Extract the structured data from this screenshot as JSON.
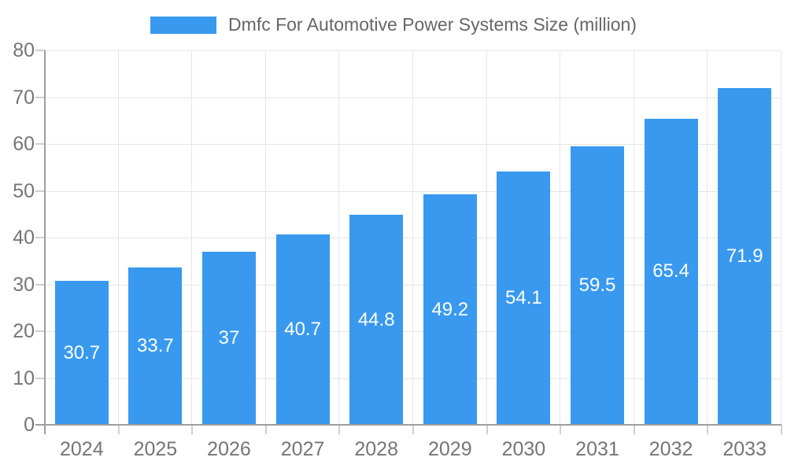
{
  "chart_data": {
    "type": "bar",
    "title": "Dmfc For Automotive Power Systems Size (million)",
    "categories": [
      "2024",
      "2025",
      "2026",
      "2027",
      "2028",
      "2029",
      "2030",
      "2031",
      "2032",
      "2033"
    ],
    "values": [
      30.7,
      33.7,
      37,
      40.7,
      44.8,
      49.2,
      54.1,
      59.5,
      65.4,
      71.9
    ],
    "value_labels": [
      "30.7",
      "33.7",
      "37",
      "40.7",
      "44.8",
      "49.2",
      "54.1",
      "59.5",
      "65.4",
      "71.9"
    ],
    "xlabel": "",
    "ylabel": "",
    "ylim": [
      0,
      80
    ],
    "yticks": [
      0,
      10,
      20,
      30,
      40,
      50,
      60,
      70,
      80
    ],
    "grid": true,
    "legend_position": "top",
    "colors": {
      "bar": "#3899EF",
      "bar_label": "#FFFFFF",
      "grid": "#E6E6E6",
      "axis": "#9E9E9E",
      "tick": "#CFCFCF",
      "tick_label": "#757575",
      "legend_text": "#666666",
      "background": "#FFFFFF"
    }
  }
}
